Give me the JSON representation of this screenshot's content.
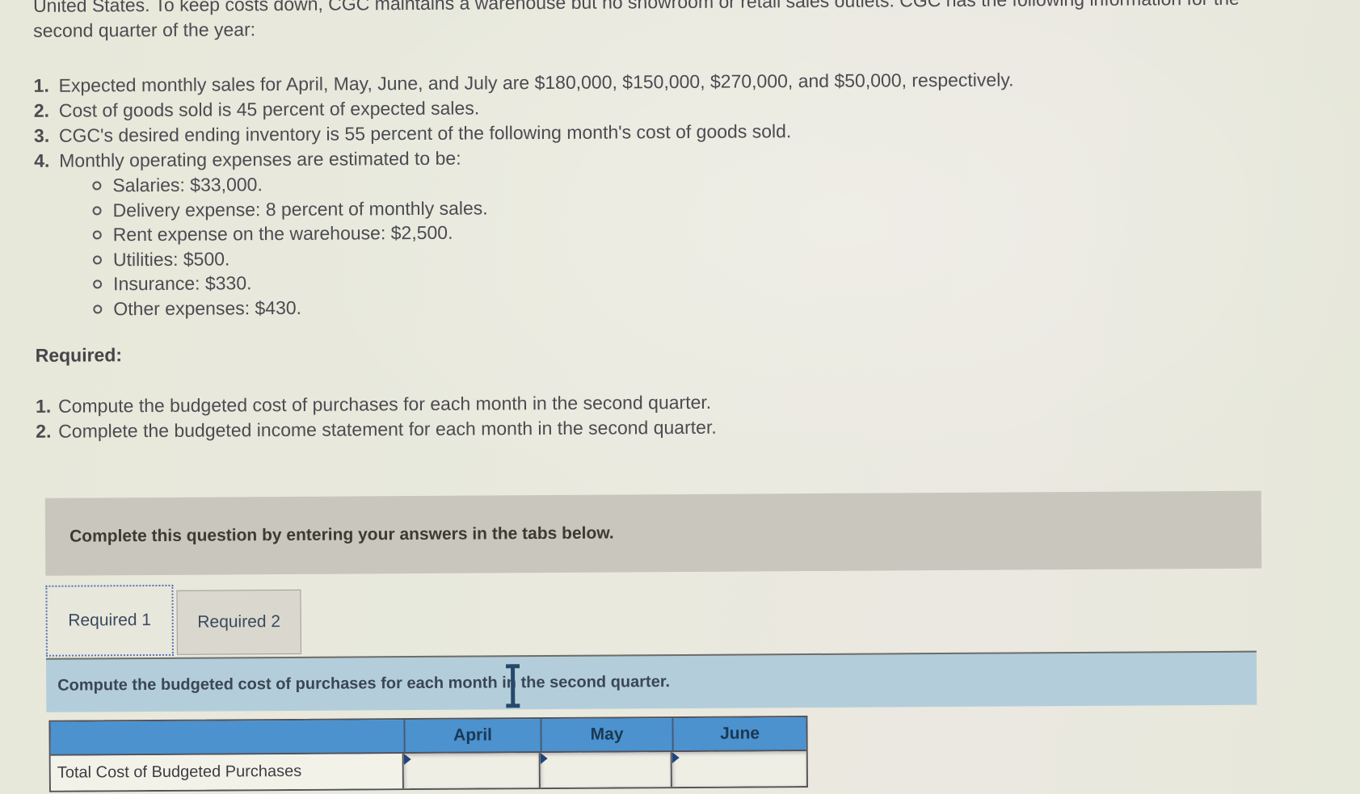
{
  "problem": {
    "intro": "United States. To keep costs down, CGC maintains a warehouse but no showroom or retail sales outlets. CGC has the following information for the second quarter of the year:",
    "items": [
      {
        "num": "1.",
        "text": "Expected monthly sales for April, May, June, and July are $180,000, $150,000, $270,000, and $50,000, respectively."
      },
      {
        "num": "2.",
        "text": "Cost of goods sold is 45 percent of expected sales."
      },
      {
        "num": "3.",
        "text": "CGC's desired ending inventory is 55 percent of the following month's cost of goods sold."
      },
      {
        "num": "4.",
        "text": "Monthly operating expenses are estimated to be:"
      }
    ],
    "expenses": [
      "Salaries: $33,000.",
      "Delivery expense: 8 percent of monthly sales.",
      "Rent expense on the warehouse: $2,500.",
      "Utilities: $500.",
      "Insurance: $330.",
      "Other expenses: $430."
    ],
    "required_label": "Required:",
    "required_items": [
      {
        "num": "1.",
        "text": "Compute the budgeted cost of purchases for each month in the second quarter."
      },
      {
        "num": "2.",
        "text": "Complete the budgeted income statement for each month in the second quarter."
      }
    ]
  },
  "panel": {
    "instruction": "Complete this question by entering your answers in the tabs below.",
    "tabs": [
      {
        "label": "Required 1",
        "active": true
      },
      {
        "label": "Required 2",
        "active": false
      }
    ],
    "prompt": "Compute the budgeted cost of purchases for each month in the second quarter."
  },
  "table": {
    "columns": [
      "April",
      "May",
      "June"
    ],
    "rows": [
      {
        "label": "Total Cost of Budgeted Purchases",
        "values": [
          "",
          "",
          ""
        ]
      }
    ]
  },
  "colors": {
    "table_header_blue": "#4b92cf",
    "prompt_banner_blue": "#b3ceda",
    "instruction_banner_grey": "#c8c6bd",
    "cell_marker_navy": "#20457a",
    "active_tab_outline": "#5572b5"
  }
}
